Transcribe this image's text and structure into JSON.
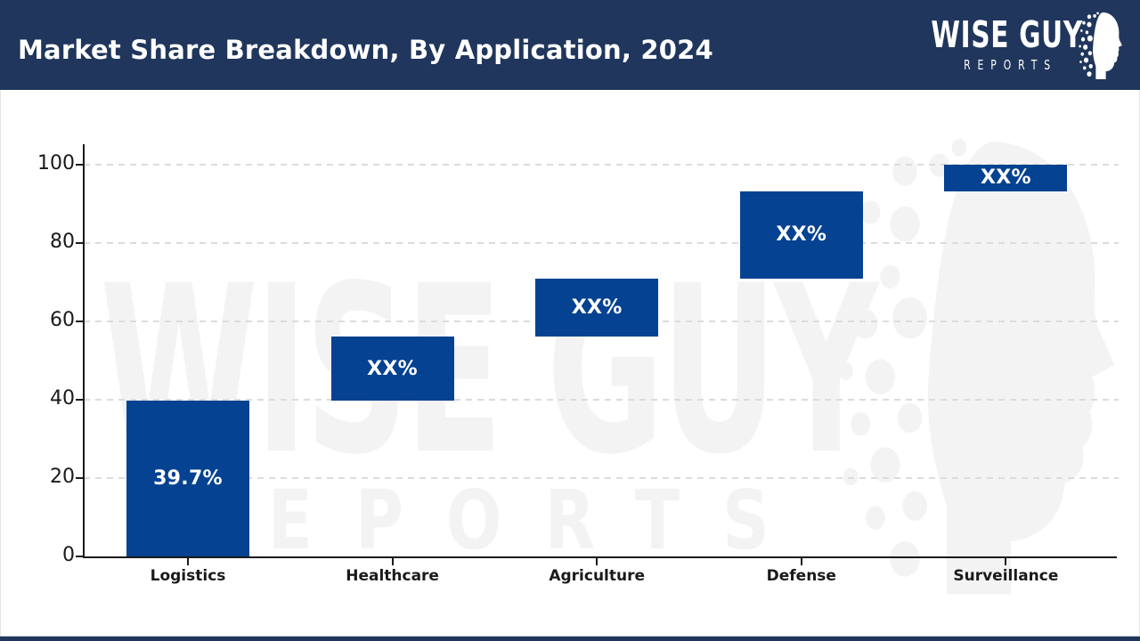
{
  "header": {
    "title": "Market Share Breakdown, By Application, 2024",
    "logo": {
      "line1": "WISE GUY",
      "line2": "REPORTS"
    }
  },
  "watermark": {
    "line1": "WISE GUY",
    "line2": "REPORTS"
  },
  "colors": {
    "header_bg": "#20365c",
    "footer_bg": "#20365c",
    "bar": "#054291",
    "axis_text": "#1a1a1a",
    "grid": "#dcdcdc",
    "bar_label": "#ffffff",
    "watermark": "#f3f3f3"
  },
  "chart_data": {
    "type": "bar",
    "subtype": "floating-waterfall",
    "title": "Market Share Breakdown, By Application, 2024",
    "categories": [
      "Logistics",
      "Healthcare",
      "Agriculture",
      "Defense",
      "Surveillance"
    ],
    "segments": [
      {
        "category": "Logistics",
        "start": 0,
        "end": 39.7,
        "label": "39.7%"
      },
      {
        "category": "Healthcare",
        "start": 39.7,
        "end": 56.1,
        "label": "XX%"
      },
      {
        "category": "Agriculture",
        "start": 56.1,
        "end": 70.9,
        "label": "XX%"
      },
      {
        "category": "Defense",
        "start": 70.9,
        "end": 93.2,
        "label": "XX%"
      },
      {
        "category": "Surveillance",
        "start": 93.2,
        "end": 100,
        "label": "XX%"
      }
    ],
    "ylim": [
      0,
      100
    ],
    "yticks": [
      0,
      20,
      40,
      60,
      80,
      100
    ],
    "xlabel": "",
    "ylabel": "",
    "grid": "horizontal-dashed",
    "legend": "none"
  }
}
